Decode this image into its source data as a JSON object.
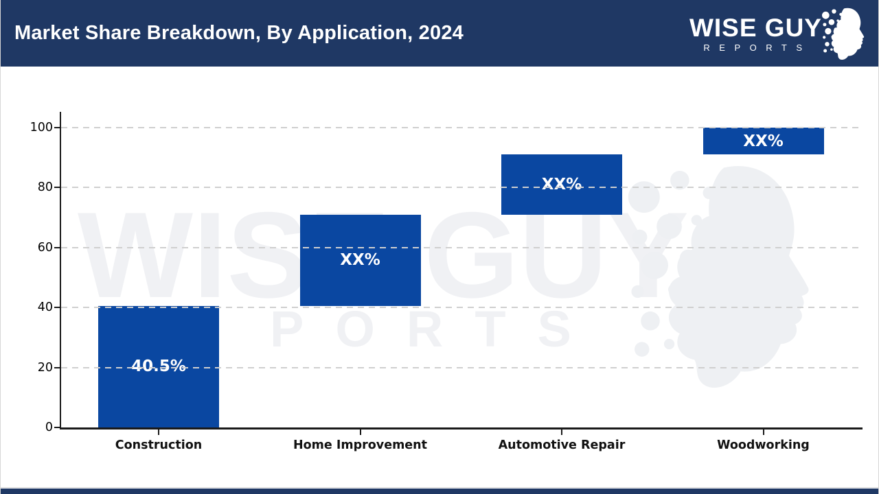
{
  "header": {
    "title": "Market Share Breakdown, By Application, 2024",
    "logo": {
      "line1": "WISE GUY",
      "line2": "REPORTS"
    }
  },
  "watermark": {
    "line1": "WISE GUY",
    "line2": "PORTS"
  },
  "colors": {
    "header_bg": "#1F3864",
    "bar": "#0A47A1",
    "bar_label_text": "#FFFFFF",
    "watermark": "#F0F1F4",
    "axis": "#1A1A1A",
    "gridline": "#CFCFCF"
  },
  "chart_data": {
    "type": "bar",
    "subtype": "floating-waterfall",
    "title": "Market Share Breakdown, By Application, 2024",
    "categories": [
      "Construction",
      "Home Improvement",
      "Automotive Repair",
      "Woodworking"
    ],
    "bars": [
      {
        "category": "Construction",
        "start": 0,
        "end": 40.5,
        "label": "40.5%"
      },
      {
        "category": "Home Improvement",
        "start": 40.5,
        "end": 71,
        "label": "XX%"
      },
      {
        "category": "Automotive Repair",
        "start": 71,
        "end": 91,
        "label": "XX%"
      },
      {
        "category": "Woodworking",
        "start": 91,
        "end": 100,
        "label": "XX%"
      }
    ],
    "yticks": [
      0,
      20,
      40,
      60,
      80,
      100
    ],
    "ylim": [
      0,
      105
    ],
    "xlabel": "",
    "ylabel": "",
    "grid": "dashed-horizontal",
    "legend": "none",
    "bar_color": "#0A47A1"
  }
}
